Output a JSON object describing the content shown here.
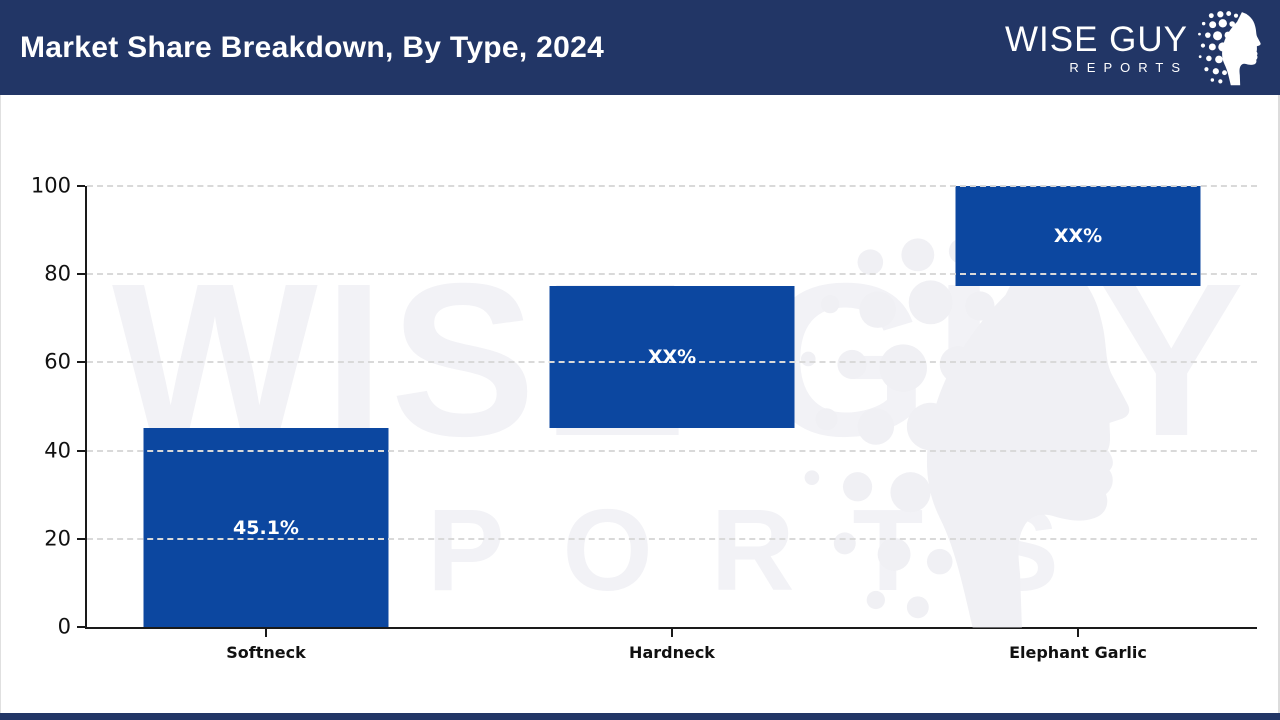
{
  "header": {
    "title": "Market Share Breakdown, By Type, 2024",
    "logo": {
      "line1": "WISE GUY",
      "line2": "REPORTS"
    }
  },
  "watermark": {
    "line1": "WISE GUY",
    "line2": "REPORTS"
  },
  "chart_data": {
    "type": "bar",
    "subtype": "waterfall-floating-bars",
    "title": "Market Share Breakdown, By Type, 2024",
    "categories": [
      "Softneck",
      "Hardneck",
      "Elephant Garlic"
    ],
    "segments": [
      {
        "category": "Softneck",
        "start": 0,
        "end": 45.1,
        "label": "45.1%"
      },
      {
        "category": "Hardneck",
        "start": 45.1,
        "end": 77.3,
        "label": "XX%"
      },
      {
        "category": "Elephant Garlic",
        "start": 77.3,
        "end": 100,
        "label": "XX%"
      }
    ],
    "xlabel": "",
    "ylabel": "",
    "ylim": [
      0,
      100
    ],
    "yticks": [
      0,
      20,
      40,
      60,
      80,
      100
    ],
    "grid": "horizontal dashed, drawn above bars",
    "legend": "none",
    "bar_color": "#0c47a0",
    "value_label_color": "#ffffff"
  },
  "colors": {
    "header_bg": "#223666",
    "footer_bg": "#223666",
    "bar_blue": "#0c47a0",
    "gridline": "#d9d9d9",
    "axis": "#1a1a1a",
    "watermark": "#f2f2f6",
    "title_text": "#ffffff"
  }
}
